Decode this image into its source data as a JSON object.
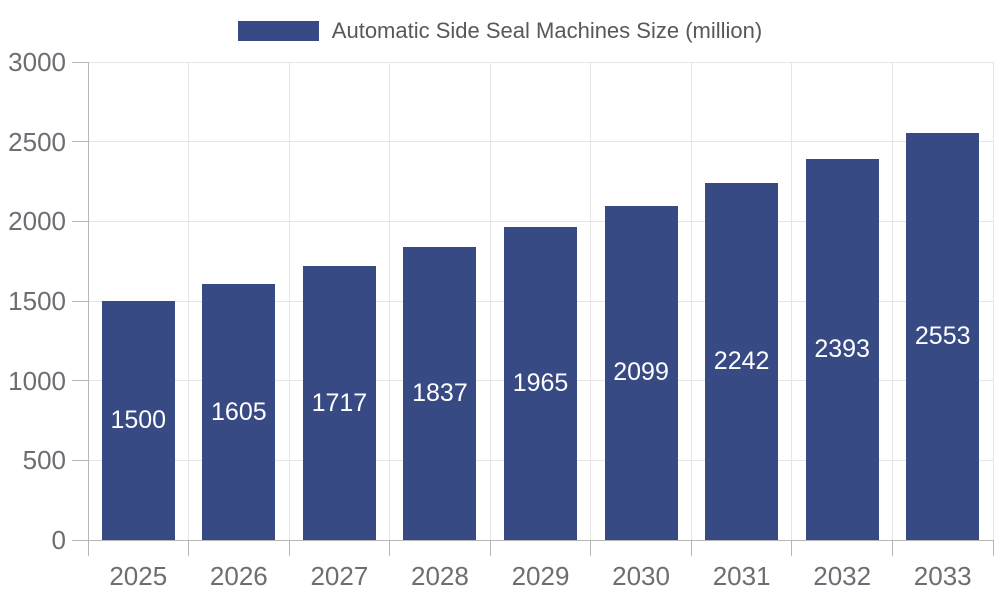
{
  "chart_data": {
    "type": "bar",
    "legend_label": "Automatic Side Seal Machines Size (million)",
    "categories": [
      "2025",
      "2026",
      "2027",
      "2028",
      "2029",
      "2030",
      "2031",
      "2032",
      "2033"
    ],
    "values": [
      1500,
      1605,
      1717,
      1837,
      1965,
      2099,
      2242,
      2393,
      2553
    ],
    "value_labels": [
      "1500",
      "1605",
      "1717",
      "1837",
      "1965",
      "2099",
      "2242",
      "2393",
      "2553"
    ],
    "yticks": [
      0,
      500,
      1000,
      1500,
      2000,
      2500,
      3000
    ],
    "ytick_labels": [
      "0",
      "500",
      "1000",
      "1500",
      "2000",
      "2500",
      "3000"
    ],
    "ylim": [
      0,
      3000
    ],
    "xlabel": "",
    "ylabel": "",
    "grid": "on",
    "legend_position": "top-center",
    "bar_color": "#384a84",
    "value_label_color": "#ffffff",
    "gridline_color": "#e5e5e5",
    "axis_color": "#b6b6b6",
    "tick_label_color": "#6b6e72",
    "legend_text_color": "#55585c",
    "background_color": "#ffffff"
  }
}
